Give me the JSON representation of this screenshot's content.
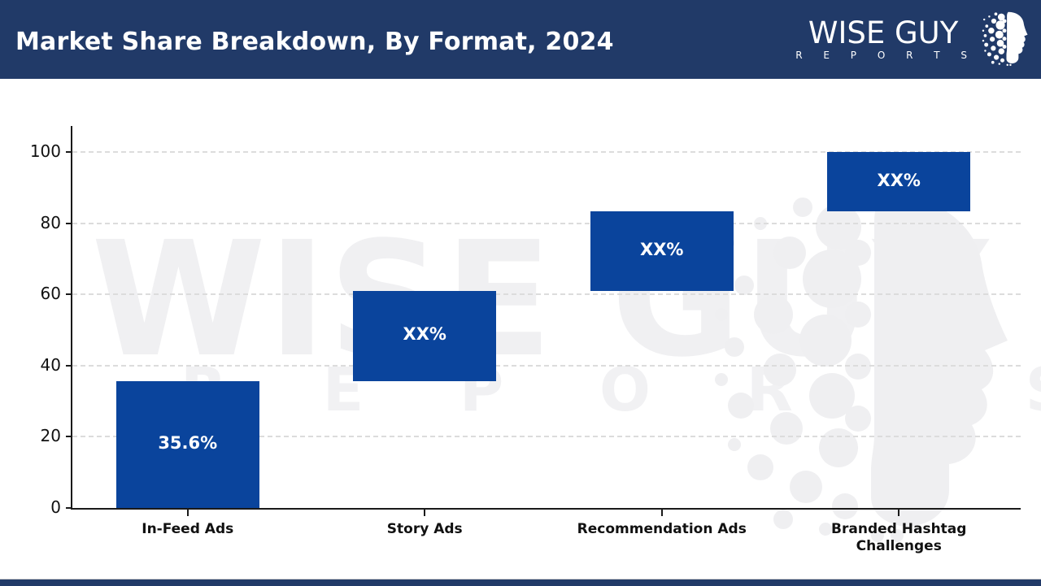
{
  "header": {
    "title": "Market Share Breakdown, By Format, 2024",
    "bg_color": "#213a68",
    "logo": {
      "line1": "WISE GUY",
      "line2": "R E P O R T S"
    }
  },
  "watermark": {
    "line1": "WISE GUY",
    "line2": "REPORTS"
  },
  "colors": {
    "bar": "#0a449c",
    "bar_label": "#ffffff",
    "header_navy": "#213a68",
    "gridline": "#dcdcdc",
    "axis": "#1a1a1a",
    "watermark_gray": "#f0f0f2"
  },
  "chart_data": {
    "type": "bar",
    "subtype": "waterfall",
    "title": "Market Share Breakdown, By Format, 2024",
    "categories": [
      "In-Feed Ads",
      "Story Ads",
      "Recommendation Ads",
      "Branded Hashtag Challenges"
    ],
    "segments": [
      {
        "category": "In-Feed Ads",
        "start": 0,
        "end": 35.6,
        "label": "35.6%"
      },
      {
        "category": "Story Ads",
        "start": 35.6,
        "end": 61.0,
        "label": "XX%"
      },
      {
        "category": "Recommendation Ads",
        "start": 61.0,
        "end": 83.3,
        "label": "XX%"
      },
      {
        "category": "Branded Hashtag Challenges",
        "start": 83.3,
        "end": 100,
        "label": "XX%"
      }
    ],
    "values": [
      35.6,
      25.4,
      22.3,
      16.7
    ],
    "xlabel": "",
    "ylabel": "",
    "y_ticks": [
      0,
      20,
      40,
      60,
      80,
      100
    ],
    "ylim": [
      0,
      107
    ],
    "grid": "horizontal-dashed",
    "legend": "none",
    "bar_color": "#0a449c"
  }
}
